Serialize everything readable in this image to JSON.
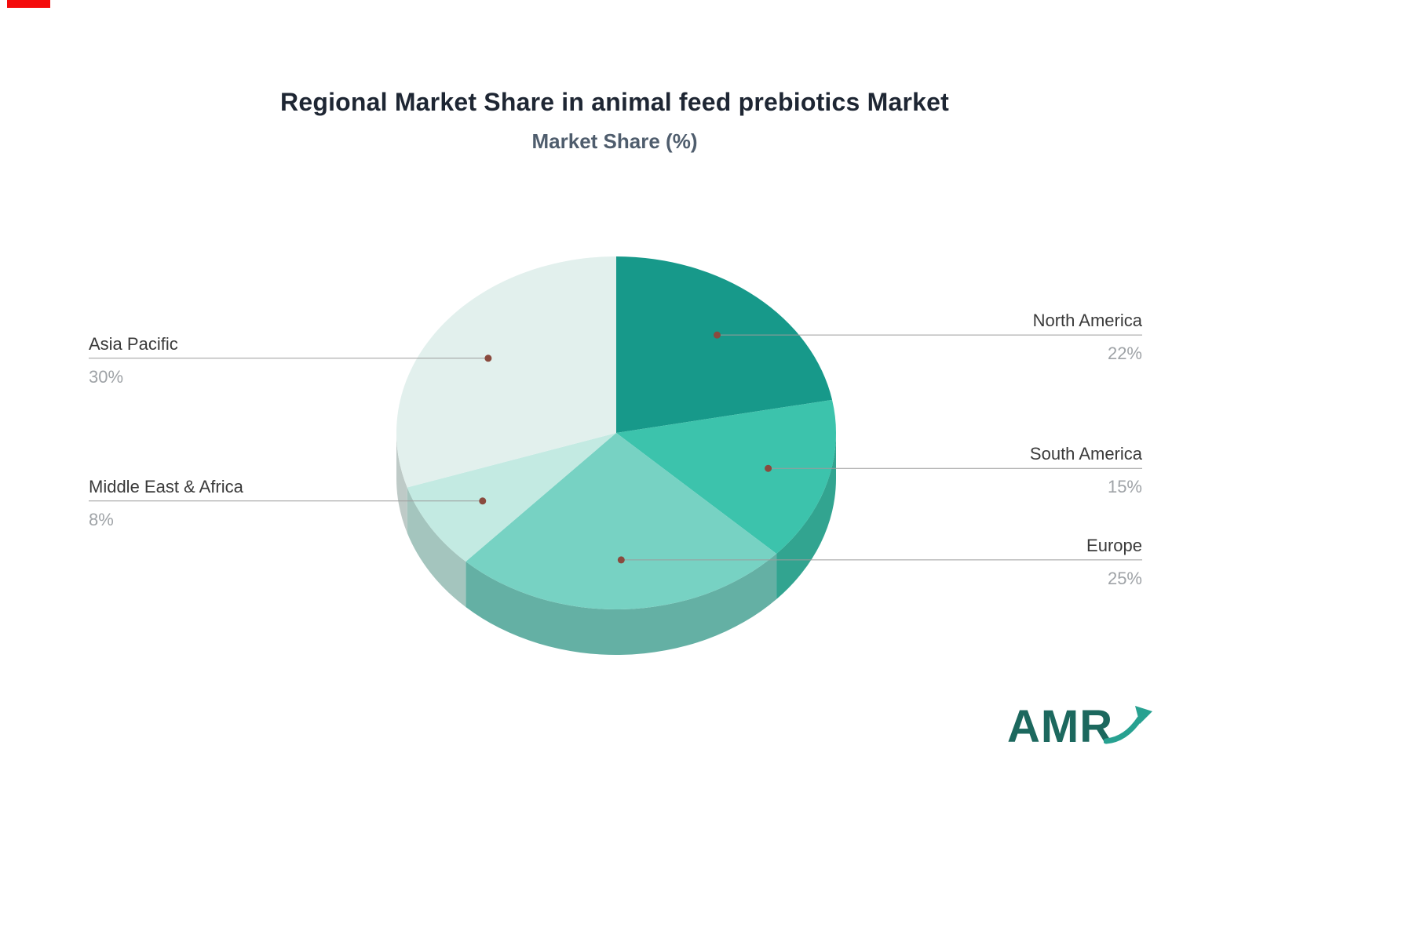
{
  "page": {
    "background": "#ffffff",
    "corner_marker_color": "#f40b0b"
  },
  "chart_data": {
    "type": "pie",
    "title": "Regional Market Share in animal feed prebiotics Market",
    "subtitle": "Market Share (%)",
    "unit": "%",
    "style": "3d",
    "start_angle_deg": -90,
    "direction": "clockwise",
    "legend_position": "none",
    "slices": [
      {
        "label": "North America",
        "value": 22,
        "display_value": "22%",
        "color": "#17998a"
      },
      {
        "label": "South America",
        "value": 15,
        "display_value": "15%",
        "color": "#3cc3ac"
      },
      {
        "label": "Europe",
        "value": 25,
        "display_value": "25%",
        "color": "#77d2c3"
      },
      {
        "label": "Middle East & Africa",
        "value": 8,
        "display_value": "8%",
        "color": "#c3eae2"
      },
      {
        "label": "Asia Pacific",
        "value": 30,
        "display_value": "30%",
        "color": "#e2f0ed"
      }
    ],
    "label_line_color": "#9b9b9b",
    "marker_color": "#8a4a3e",
    "label_text_color": "#3a3a3a",
    "value_text_color": "#9fa3a7"
  },
  "logo": {
    "text": "AMR",
    "color": "#1c685e",
    "arrow_color": "#28a191"
  }
}
